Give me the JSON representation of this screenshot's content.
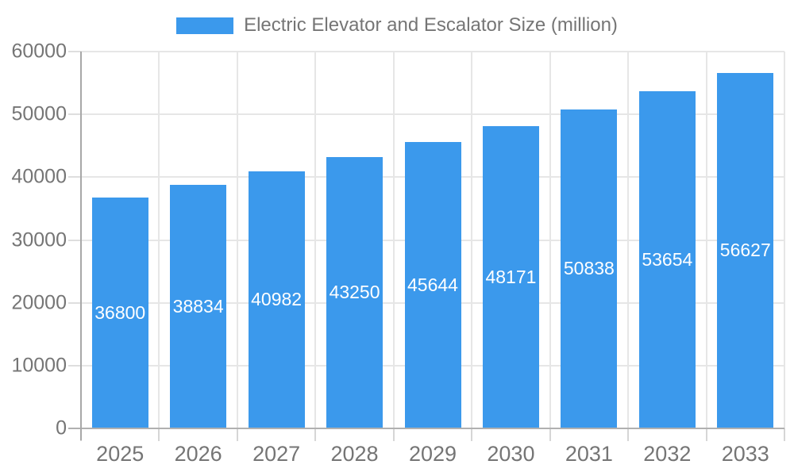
{
  "chart_data": {
    "type": "bar",
    "title": "Electric Elevator and Escalator Size (million)",
    "categories": [
      "2025",
      "2026",
      "2027",
      "2028",
      "2029",
      "2030",
      "2031",
      "2032",
      "2033"
    ],
    "values": [
      36800,
      38834,
      40982,
      43250,
      45644,
      48171,
      50838,
      53654,
      56627
    ],
    "series": [
      {
        "name": "Electric Elevator and Escalator Size (million)",
        "values": [
          36800,
          38834,
          40982,
          43250,
          45644,
          48171,
          50838,
          53654,
          56627
        ]
      }
    ],
    "xlabel": "",
    "ylabel": "",
    "ylim": [
      0,
      60000
    ],
    "yticks": [
      0,
      10000,
      20000,
      30000,
      40000,
      50000,
      60000
    ],
    "grid": true,
    "legend_position": "top-center",
    "value_labels": "inside-center-white",
    "colors": {
      "bar": "#3B99EC",
      "gridline": "#e6e6e6",
      "axis": "#b0b0b0",
      "tick": "#d6d6d6",
      "text": "#757575",
      "bar_label": "#ffffff",
      "background": "#ffffff"
    }
  }
}
